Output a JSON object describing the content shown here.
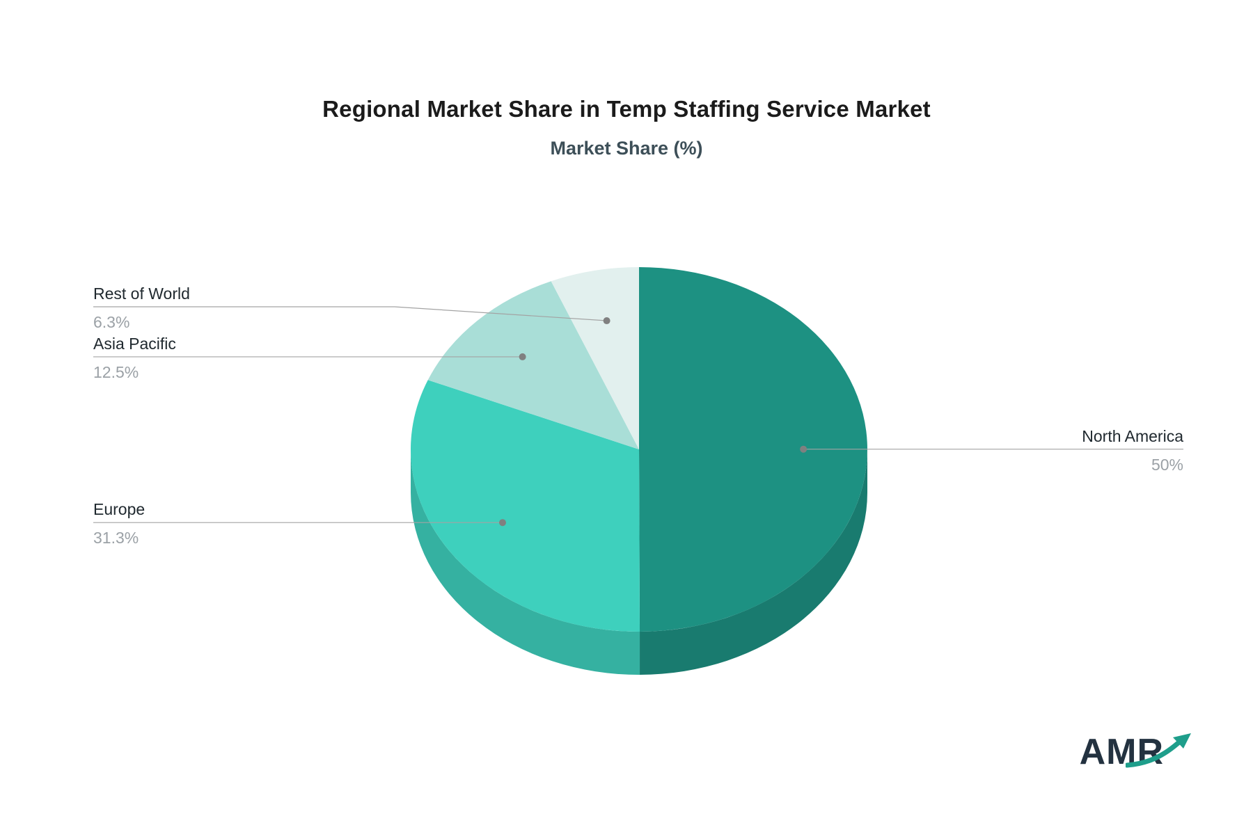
{
  "chart_data": {
    "type": "pie",
    "title": "Regional Market Share in Temp Staffing Service Market",
    "subtitle": "Market Share (%)",
    "effect": "3d",
    "start_angle": "top",
    "direction": "clockwise",
    "legend_position": "none",
    "label_style": "callout-leader-lines",
    "background": "#ffffff",
    "slices": [
      {
        "label": "North America",
        "value": 50,
        "display": "50%",
        "color": "#1d9182"
      },
      {
        "label": "Europe",
        "value": 31.3,
        "display": "31.3%",
        "color": "#3ed0bd"
      },
      {
        "label": "Asia Pacific",
        "value": 12.5,
        "display": "12.5%",
        "color": "#a9ded7"
      },
      {
        "label": "Rest of World",
        "value": 6.3,
        "display": "6.3%",
        "color": "#e2f0ee"
      }
    ],
    "leader_line_color": "#a3a3a3",
    "label_name_color": "#20292f",
    "label_value_color": "#9ba1a6"
  },
  "branding": {
    "logo_text": "AMR",
    "logo_color": "#233240",
    "arrow_color": "#1e9e8b"
  }
}
